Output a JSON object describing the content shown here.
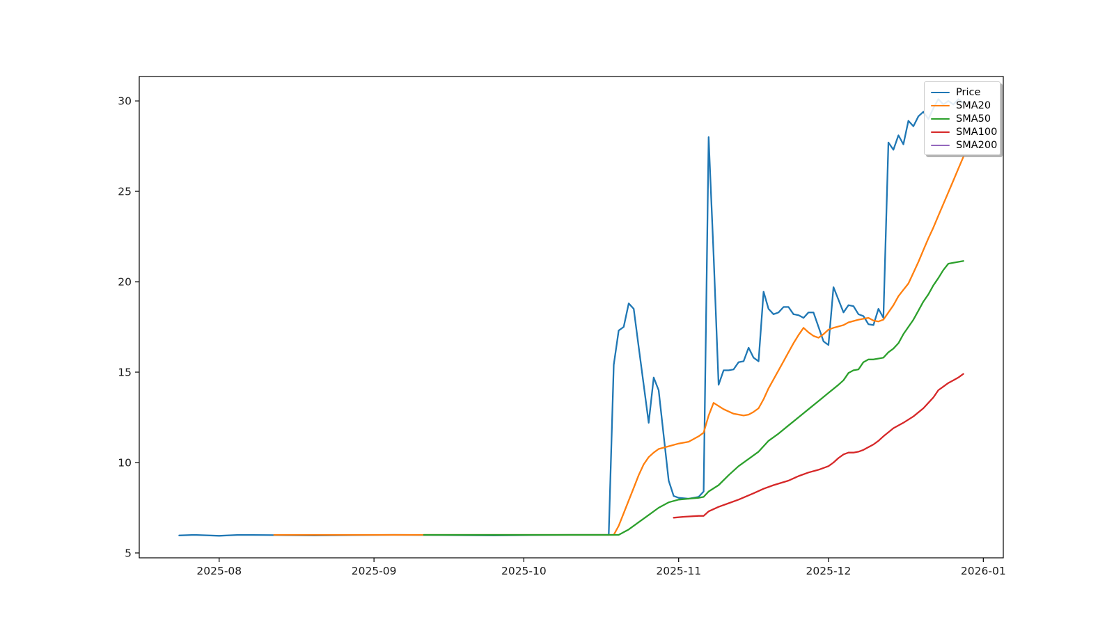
{
  "figure": {
    "background_color": "#ffffff",
    "frame_color": "#000000"
  },
  "chart_data": {
    "type": "line",
    "title": "",
    "xlabel": "",
    "ylabel": "",
    "grid": false,
    "xlim": [
      "2025-07-16",
      "2026-01-05"
    ],
    "ylim": [
      4.73,
      31.35
    ],
    "y_ticks": [
      "5",
      "10",
      "15",
      "20",
      "25",
      "30"
    ],
    "y_tick_values": [
      5,
      10,
      15,
      20,
      25,
      30
    ],
    "x_ticks": [
      {
        "label": "2025-08",
        "date": "2025-08-01"
      },
      {
        "label": "2025-09",
        "date": "2025-09-01"
      },
      {
        "label": "2025-10",
        "date": "2025-10-01"
      },
      {
        "label": "2025-11",
        "date": "2025-11-01"
      },
      {
        "label": "2025-12",
        "date": "2025-12-01"
      },
      {
        "label": "2026-01",
        "date": "2026-01-01"
      }
    ],
    "legend": {
      "position": "upper-right",
      "entries": [
        "Price",
        "SMA20",
        "SMA50",
        "SMA100",
        "SMA200"
      ]
    },
    "series": [
      {
        "name": "Price",
        "color": "#1f77b4",
        "points": [
          [
            "2025-07-24",
            5.97
          ],
          [
            "2025-07-27",
            6.0
          ],
          [
            "2025-08-01",
            5.95
          ],
          [
            "2025-08-05",
            6.0
          ],
          [
            "2025-08-20",
            5.97
          ],
          [
            "2025-09-05",
            6.0
          ],
          [
            "2025-09-25",
            5.97
          ],
          [
            "2025-10-10",
            6.0
          ],
          [
            "2025-10-18",
            6.0
          ],
          [
            "2025-10-19",
            15.4
          ],
          [
            "2025-10-20",
            17.3
          ],
          [
            "2025-10-21",
            17.5
          ],
          [
            "2025-10-22",
            18.8
          ],
          [
            "2025-10-23",
            18.5
          ],
          [
            "2025-10-24",
            16.4
          ],
          [
            "2025-10-25",
            14.3
          ],
          [
            "2025-10-26",
            12.2
          ],
          [
            "2025-10-27",
            14.7
          ],
          [
            "2025-10-28",
            14.0
          ],
          [
            "2025-10-29",
            11.5
          ],
          [
            "2025-10-30",
            9.0
          ],
          [
            "2025-10-31",
            8.15
          ],
          [
            "2025-11-01",
            8.05
          ],
          [
            "2025-11-03",
            8.0
          ],
          [
            "2025-11-05",
            8.1
          ],
          [
            "2025-11-06",
            8.4
          ],
          [
            "2025-11-07",
            28.0
          ],
          [
            "2025-11-08",
            21.5
          ],
          [
            "2025-11-09",
            14.3
          ],
          [
            "2025-11-10",
            15.1
          ],
          [
            "2025-11-11",
            15.1
          ],
          [
            "2025-11-12",
            15.15
          ],
          [
            "2025-11-13",
            15.55
          ],
          [
            "2025-11-14",
            15.6
          ],
          [
            "2025-11-15",
            16.35
          ],
          [
            "2025-11-16",
            15.8
          ],
          [
            "2025-11-17",
            15.6
          ],
          [
            "2025-11-18",
            19.45
          ],
          [
            "2025-11-19",
            18.5
          ],
          [
            "2025-11-20",
            18.2
          ],
          [
            "2025-11-21",
            18.3
          ],
          [
            "2025-11-22",
            18.6
          ],
          [
            "2025-11-23",
            18.6
          ],
          [
            "2025-11-24",
            18.2
          ],
          [
            "2025-11-25",
            18.15
          ],
          [
            "2025-11-26",
            18.0
          ],
          [
            "2025-11-27",
            18.3
          ],
          [
            "2025-11-28",
            18.3
          ],
          [
            "2025-11-29",
            17.5
          ],
          [
            "2025-11-30",
            16.7
          ],
          [
            "2025-12-01",
            16.5
          ],
          [
            "2025-12-02",
            19.7
          ],
          [
            "2025-12-03",
            19.0
          ],
          [
            "2025-12-04",
            18.3
          ],
          [
            "2025-12-05",
            18.7
          ],
          [
            "2025-12-06",
            18.65
          ],
          [
            "2025-12-07",
            18.2
          ],
          [
            "2025-12-08",
            18.1
          ],
          [
            "2025-12-09",
            17.65
          ],
          [
            "2025-12-10",
            17.6
          ],
          [
            "2025-12-11",
            18.5
          ],
          [
            "2025-12-12",
            18.0
          ],
          [
            "2025-12-13",
            27.7
          ],
          [
            "2025-12-14",
            27.3
          ],
          [
            "2025-12-15",
            28.1
          ],
          [
            "2025-12-16",
            27.6
          ],
          [
            "2025-12-17",
            28.9
          ],
          [
            "2025-12-18",
            28.6
          ],
          [
            "2025-12-19",
            29.15
          ],
          [
            "2025-12-20",
            29.4
          ],
          [
            "2025-12-21",
            29.0
          ],
          [
            "2025-12-22",
            29.6
          ],
          [
            "2025-12-23",
            30.1
          ],
          [
            "2025-12-24",
            29.8
          ],
          [
            "2025-12-25",
            30.0
          ],
          [
            "2025-12-26",
            29.8
          ],
          [
            "2025-12-27",
            30.1
          ],
          [
            "2025-12-28",
            29.9
          ]
        ]
      },
      {
        "name": "SMA20",
        "color": "#ff7f0e",
        "points": [
          [
            "2025-08-12",
            6.0
          ],
          [
            "2025-09-15",
            6.0
          ],
          [
            "2025-10-19",
            6.0
          ],
          [
            "2025-10-20",
            6.5
          ],
          [
            "2025-10-21",
            7.2
          ],
          [
            "2025-10-22",
            7.9
          ],
          [
            "2025-10-23",
            8.6
          ],
          [
            "2025-10-24",
            9.3
          ],
          [
            "2025-10-25",
            9.9
          ],
          [
            "2025-10-26",
            10.3
          ],
          [
            "2025-10-27",
            10.55
          ],
          [
            "2025-10-28",
            10.75
          ],
          [
            "2025-10-30",
            10.9
          ],
          [
            "2025-11-01",
            11.05
          ],
          [
            "2025-11-03",
            11.15
          ],
          [
            "2025-11-05",
            11.45
          ],
          [
            "2025-11-06",
            11.65
          ],
          [
            "2025-11-07",
            12.6
          ],
          [
            "2025-11-08",
            13.3
          ],
          [
            "2025-11-10",
            12.95
          ],
          [
            "2025-11-12",
            12.7
          ],
          [
            "2025-11-14",
            12.6
          ],
          [
            "2025-11-15",
            12.65
          ],
          [
            "2025-11-16",
            12.8
          ],
          [
            "2025-11-17",
            13.0
          ],
          [
            "2025-11-18",
            13.5
          ],
          [
            "2025-11-19",
            14.1
          ],
          [
            "2025-11-20",
            14.6
          ],
          [
            "2025-11-21",
            15.1
          ],
          [
            "2025-11-22",
            15.6
          ],
          [
            "2025-11-23",
            16.1
          ],
          [
            "2025-11-24",
            16.6
          ],
          [
            "2025-11-25",
            17.05
          ],
          [
            "2025-11-26",
            17.45
          ],
          [
            "2025-11-27",
            17.2
          ],
          [
            "2025-11-28",
            17.0
          ],
          [
            "2025-11-29",
            16.9
          ],
          [
            "2025-11-30",
            17.1
          ],
          [
            "2025-12-01",
            17.35
          ],
          [
            "2025-12-02",
            17.45
          ],
          [
            "2025-12-04",
            17.6
          ],
          [
            "2025-12-05",
            17.75
          ],
          [
            "2025-12-07",
            17.9
          ],
          [
            "2025-12-09",
            18.0
          ],
          [
            "2025-12-10",
            17.85
          ],
          [
            "2025-12-11",
            17.8
          ],
          [
            "2025-12-12",
            17.9
          ],
          [
            "2025-12-13",
            18.3
          ],
          [
            "2025-12-14",
            18.7
          ],
          [
            "2025-12-15",
            19.2
          ],
          [
            "2025-12-16",
            19.55
          ],
          [
            "2025-12-17",
            19.9
          ],
          [
            "2025-12-18",
            20.5
          ],
          [
            "2025-12-19",
            21.1
          ],
          [
            "2025-12-20",
            21.75
          ],
          [
            "2025-12-21",
            22.4
          ],
          [
            "2025-12-22",
            23.0
          ],
          [
            "2025-12-23",
            23.65
          ],
          [
            "2025-12-24",
            24.3
          ],
          [
            "2025-12-25",
            24.95
          ],
          [
            "2025-12-26",
            25.6
          ],
          [
            "2025-12-27",
            26.25
          ],
          [
            "2025-12-28",
            26.9
          ]
        ]
      },
      {
        "name": "SMA50",
        "color": "#2ca02c",
        "points": [
          [
            "2025-09-11",
            6.0
          ],
          [
            "2025-10-05",
            6.0
          ],
          [
            "2025-10-20",
            6.0
          ],
          [
            "2025-10-22",
            6.3
          ],
          [
            "2025-10-24",
            6.7
          ],
          [
            "2025-10-26",
            7.1
          ],
          [
            "2025-10-28",
            7.5
          ],
          [
            "2025-10-30",
            7.8
          ],
          [
            "2025-11-01",
            7.95
          ],
          [
            "2025-11-03",
            8.0
          ],
          [
            "2025-11-05",
            8.05
          ],
          [
            "2025-11-06",
            8.1
          ],
          [
            "2025-11-07",
            8.4
          ],
          [
            "2025-11-09",
            8.75
          ],
          [
            "2025-11-11",
            9.3
          ],
          [
            "2025-11-13",
            9.8
          ],
          [
            "2025-11-15",
            10.2
          ],
          [
            "2025-11-17",
            10.6
          ],
          [
            "2025-11-19",
            11.2
          ],
          [
            "2025-11-21",
            11.6
          ],
          [
            "2025-11-23",
            12.05
          ],
          [
            "2025-11-25",
            12.5
          ],
          [
            "2025-11-27",
            12.95
          ],
          [
            "2025-11-29",
            13.4
          ],
          [
            "2025-12-01",
            13.85
          ],
          [
            "2025-12-03",
            14.3
          ],
          [
            "2025-12-04",
            14.55
          ],
          [
            "2025-12-05",
            14.95
          ],
          [
            "2025-12-06",
            15.1
          ],
          [
            "2025-12-07",
            15.15
          ],
          [
            "2025-12-08",
            15.55
          ],
          [
            "2025-12-09",
            15.7
          ],
          [
            "2025-12-10",
            15.7
          ],
          [
            "2025-12-11",
            15.75
          ],
          [
            "2025-12-12",
            15.8
          ],
          [
            "2025-12-13",
            16.1
          ],
          [
            "2025-12-14",
            16.3
          ],
          [
            "2025-12-15",
            16.6
          ],
          [
            "2025-12-16",
            17.1
          ],
          [
            "2025-12-17",
            17.5
          ],
          [
            "2025-12-18",
            17.9
          ],
          [
            "2025-12-19",
            18.4
          ],
          [
            "2025-12-20",
            18.9
          ],
          [
            "2025-12-21",
            19.3
          ],
          [
            "2025-12-22",
            19.8
          ],
          [
            "2025-12-23",
            20.2
          ],
          [
            "2025-12-24",
            20.65
          ],
          [
            "2025-12-25",
            21.0
          ],
          [
            "2025-12-26",
            21.05
          ],
          [
            "2025-12-27",
            21.1
          ],
          [
            "2025-12-28",
            21.15
          ]
        ]
      },
      {
        "name": "SMA100",
        "color": "#d62728",
        "points": [
          [
            "2025-10-31",
            6.95
          ],
          [
            "2025-11-02",
            7.0
          ],
          [
            "2025-11-05",
            7.05
          ],
          [
            "2025-11-06",
            7.05
          ],
          [
            "2025-11-07",
            7.3
          ],
          [
            "2025-11-09",
            7.55
          ],
          [
            "2025-11-11",
            7.75
          ],
          [
            "2025-11-13",
            7.95
          ],
          [
            "2025-11-16",
            8.3
          ],
          [
            "2025-11-18",
            8.55
          ],
          [
            "2025-11-20",
            8.75
          ],
          [
            "2025-11-23",
            9.0
          ],
          [
            "2025-11-25",
            9.25
          ],
          [
            "2025-11-27",
            9.45
          ],
          [
            "2025-11-29",
            9.6
          ],
          [
            "2025-12-01",
            9.8
          ],
          [
            "2025-12-02",
            10.0
          ],
          [
            "2025-12-03",
            10.25
          ],
          [
            "2025-12-04",
            10.45
          ],
          [
            "2025-12-05",
            10.55
          ],
          [
            "2025-12-06",
            10.55
          ],
          [
            "2025-12-07",
            10.6
          ],
          [
            "2025-12-08",
            10.7
          ],
          [
            "2025-12-09",
            10.85
          ],
          [
            "2025-12-10",
            11.0
          ],
          [
            "2025-12-11",
            11.2
          ],
          [
            "2025-12-12",
            11.45
          ],
          [
            "2025-12-14",
            11.9
          ],
          [
            "2025-12-16",
            12.2
          ],
          [
            "2025-12-18",
            12.55
          ],
          [
            "2025-12-20",
            13.0
          ],
          [
            "2025-12-21",
            13.3
          ],
          [
            "2025-12-22",
            13.6
          ],
          [
            "2025-12-23",
            14.0
          ],
          [
            "2025-12-24",
            14.2
          ],
          [
            "2025-12-25",
            14.4
          ],
          [
            "2025-12-26",
            14.55
          ],
          [
            "2025-12-27",
            14.7
          ],
          [
            "2025-12-28",
            14.9
          ]
        ]
      },
      {
        "name": "SMA200",
        "color": "#9467bd",
        "points": []
      }
    ]
  }
}
